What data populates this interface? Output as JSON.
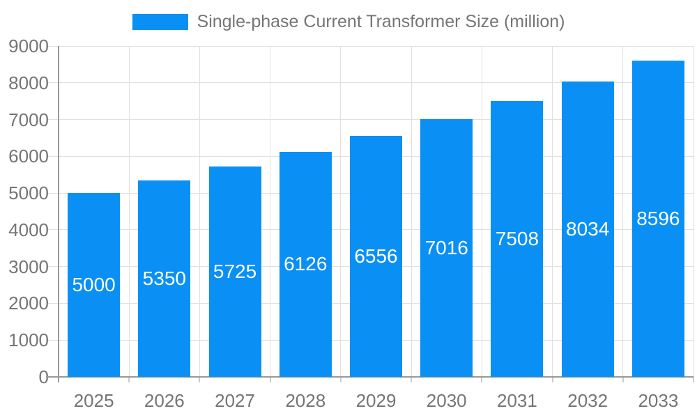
{
  "legend": {
    "label": "Single-phase Current Transformer Size (million)"
  },
  "chart_data": {
    "type": "bar",
    "title": "Single-phase Current Transformer Size (million)",
    "categories": [
      "2025",
      "2026",
      "2027",
      "2028",
      "2029",
      "2030",
      "2031",
      "2032",
      "2033"
    ],
    "values": [
      5000,
      5350,
      5725,
      6126,
      6556,
      7016,
      7508,
      8034,
      8596
    ],
    "xlabel": "",
    "ylabel": "",
    "ylim": [
      0,
      9000
    ],
    "ytick_step": 1000,
    "yticks": [
      0,
      1000,
      2000,
      3000,
      4000,
      5000,
      6000,
      7000,
      8000,
      9000
    ],
    "grid": true,
    "legend_position": "top",
    "value_labels": "centered-inside-bars",
    "colors": {
      "bar": "#0a90f5",
      "value_label": "#ffffff",
      "axis_text": "#757575",
      "axis_line": "#999999",
      "gridline": "#e0e0e0",
      "category_tick": "#cccccc",
      "background": "#ffffff"
    }
  }
}
